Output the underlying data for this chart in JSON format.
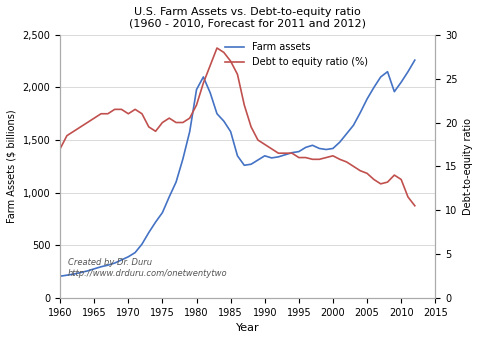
{
  "title_line1": "U.S. Farm Assets vs. Debt-to-equity ratio",
  "title_line2": "(1960 - 2010, Forecast for 2011 and 2012)",
  "xlabel": "Year",
  "ylabel_left": "Farm Assets ($ billions)",
  "ylabel_right": "Debt-to-equity ratio",
  "annotation": "Created by Dr. Duru\nhttp://www.drduru.com/onetwentytwo",
  "farm_assets_years": [
    1960,
    1961,
    1962,
    1963,
    1964,
    1965,
    1966,
    1967,
    1968,
    1969,
    1970,
    1971,
    1972,
    1973,
    1974,
    1975,
    1976,
    1977,
    1978,
    1979,
    1980,
    1981,
    1982,
    1983,
    1984,
    1985,
    1986,
    1987,
    1988,
    1989,
    1990,
    1991,
    1992,
    1993,
    1994,
    1995,
    1996,
    1997,
    1998,
    1999,
    2000,
    2001,
    2002,
    2003,
    2004,
    2005,
    2006,
    2007,
    2008,
    2009,
    2010,
    2011,
    2012
  ],
  "farm_assets_values": [
    205,
    215,
    225,
    240,
    255,
    275,
    295,
    310,
    330,
    360,
    390,
    430,
    510,
    620,
    720,
    810,
    960,
    1100,
    1320,
    1580,
    1980,
    2100,
    1950,
    1750,
    1680,
    1580,
    1350,
    1260,
    1270,
    1310,
    1350,
    1330,
    1340,
    1360,
    1380,
    1390,
    1430,
    1450,
    1420,
    1410,
    1420,
    1480,
    1560,
    1640,
    1760,
    1890,
    2000,
    2100,
    2150,
    1960,
    2050,
    2150,
    2260
  ],
  "debt_equity_years": [
    1960,
    1961,
    1962,
    1963,
    1964,
    1965,
    1966,
    1967,
    1968,
    1969,
    1970,
    1971,
    1972,
    1973,
    1974,
    1975,
    1976,
    1977,
    1978,
    1979,
    1980,
    1981,
    1982,
    1983,
    1984,
    1985,
    1986,
    1987,
    1988,
    1989,
    1990,
    1991,
    1992,
    1993,
    1994,
    1995,
    1996,
    1997,
    1998,
    1999,
    2000,
    2001,
    2002,
    2003,
    2004,
    2005,
    2006,
    2007,
    2008,
    2009,
    2010,
    2011,
    2012
  ],
  "debt_equity_values": [
    17.0,
    18.5,
    19.0,
    19.5,
    20.0,
    20.5,
    21.0,
    21.0,
    21.5,
    21.5,
    21.0,
    21.5,
    21.0,
    19.5,
    19.0,
    20.0,
    20.5,
    20.0,
    20.0,
    20.5,
    22.0,
    24.5,
    26.5,
    28.5,
    28.0,
    27.0,
    25.5,
    22.0,
    19.5,
    18.0,
    17.5,
    17.0,
    16.5,
    16.5,
    16.5,
    16.0,
    16.0,
    15.8,
    15.8,
    16.0,
    16.2,
    15.8,
    15.5,
    15.0,
    14.5,
    14.2,
    13.5,
    13.0,
    13.2,
    14.0,
    13.5,
    11.5,
    10.5
  ],
  "farm_color": "#4472C4",
  "debt_color": "#C0504D",
  "background_color": "#FFFFFF",
  "xlim": [
    1960,
    2015
  ],
  "ylim_left": [
    0,
    2500
  ],
  "ylim_right": [
    0,
    30
  ],
  "yticks_left": [
    0,
    500,
    1000,
    1500,
    2000,
    2500
  ],
  "yticks_right": [
    0,
    5,
    10,
    15,
    20,
    25,
    30
  ],
  "xticks": [
    1960,
    1965,
    1970,
    1975,
    1980,
    1985,
    1990,
    1995,
    2000,
    2005,
    2010,
    2015
  ]
}
